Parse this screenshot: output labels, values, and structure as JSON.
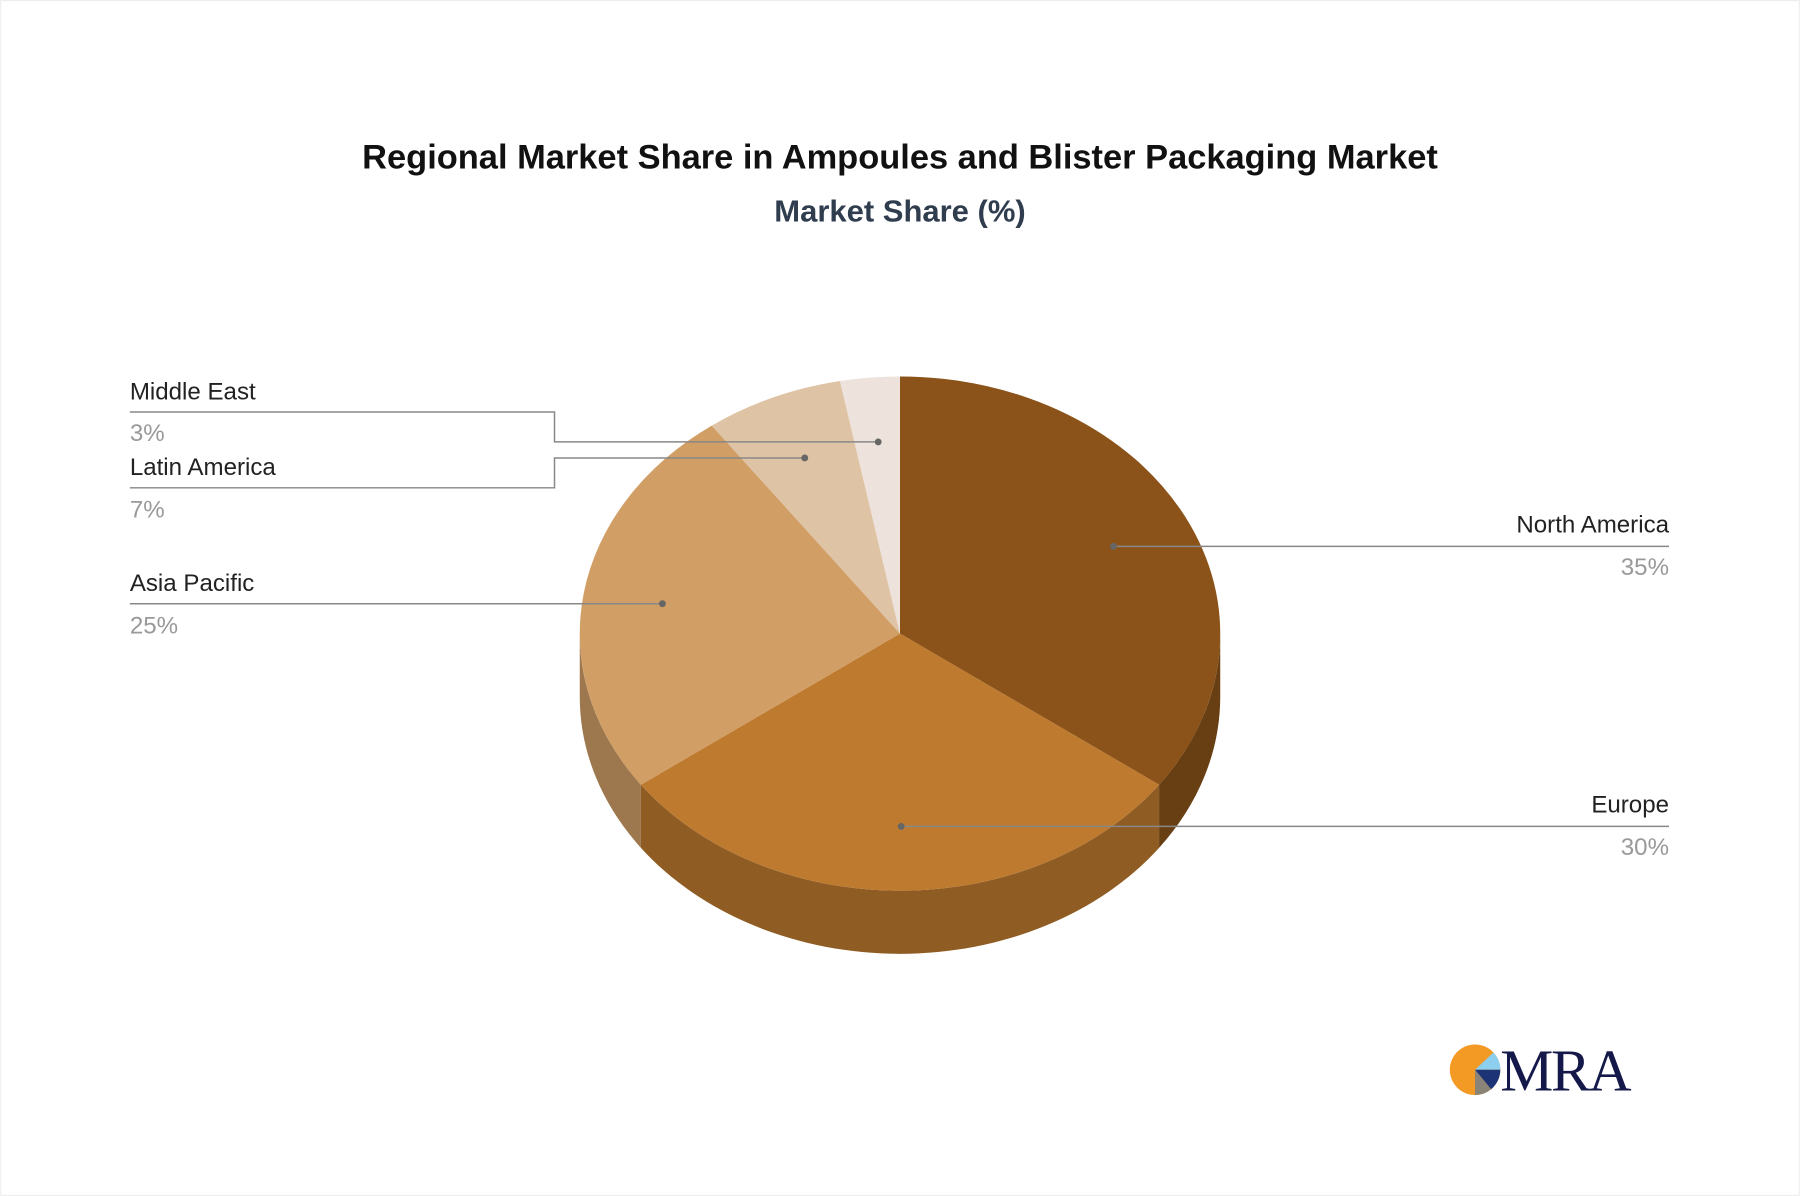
{
  "chart_data": {
    "type": "pie",
    "title": "Regional Market Share in Ampoules and Blister Packaging Market",
    "subtitle": "Market Share (%)",
    "categories": [
      "North America",
      "Europe",
      "Asia Pacific",
      "Latin America",
      "Middle East"
    ],
    "values": [
      35,
      30,
      25,
      7,
      3
    ],
    "value_labels": [
      "35%",
      "30%",
      "25%",
      "7%",
      "3%"
    ],
    "colors": [
      "#8B5319",
      "#BE7A2F",
      "#D19E66",
      "#DEC3A5",
      "#EDE3DC"
    ],
    "style": "3d",
    "legend": "none"
  },
  "logo": {
    "text": "MRA"
  }
}
